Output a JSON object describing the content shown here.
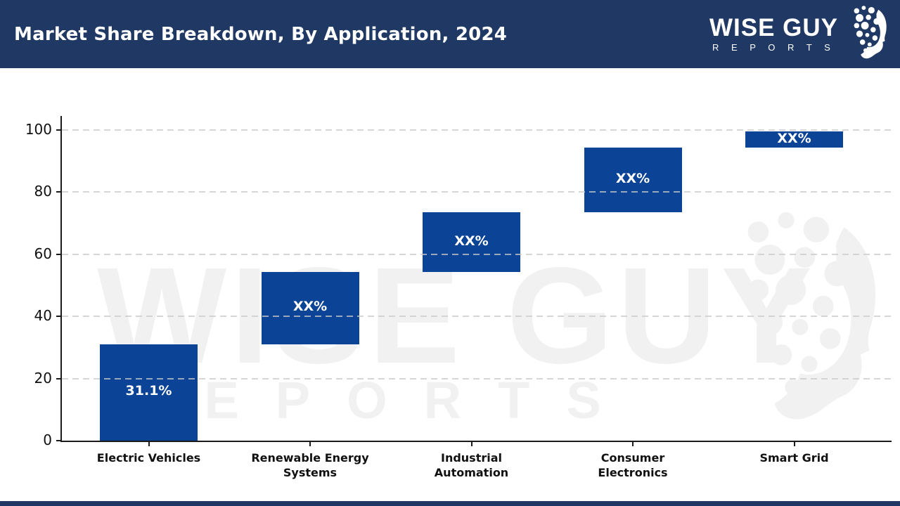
{
  "header": {
    "title": "Market Share Breakdown, By Application, 2024",
    "logo": {
      "name": "WISE GUY",
      "tagline": "R E P O R T S"
    }
  },
  "watermark": {
    "line1": "WISE GUY",
    "line2": "REPORTS"
  },
  "chart_data": {
    "type": "bar",
    "variant": "floating-waterfall",
    "title": "Market Share Breakdown, By Application, 2024",
    "categories": [
      "Electric Vehicles",
      "Renewable Energy\nSystems",
      "Industrial\nAutomation",
      "Consumer\nElectronics",
      "Smart Grid"
    ],
    "segments": [
      {
        "category": "Electric Vehicles",
        "start": 0,
        "end": 31.1,
        "label": "31.1%"
      },
      {
        "category": "Renewable Energy Systems",
        "start": 31.1,
        "end": 54.3,
        "label": "XX%"
      },
      {
        "category": "Industrial Automation",
        "start": 54.3,
        "end": 73.5,
        "label": "XX%"
      },
      {
        "category": "Consumer Electronics",
        "start": 73.5,
        "end": 94.3,
        "label": "XX%"
      },
      {
        "category": "Smart Grid",
        "start": 94.3,
        "end": 99.5,
        "label": "XX%"
      }
    ],
    "ylim": [
      0,
      100
    ],
    "yticks": [
      0,
      20,
      40,
      60,
      80,
      100
    ],
    "xlabel": "",
    "ylabel": "",
    "grid": "dashed-horizontal-over-bars",
    "legend": "none",
    "bar_color": "#0b4397",
    "bar_label_color": "#ffffff",
    "header_color": "#1f3864"
  }
}
